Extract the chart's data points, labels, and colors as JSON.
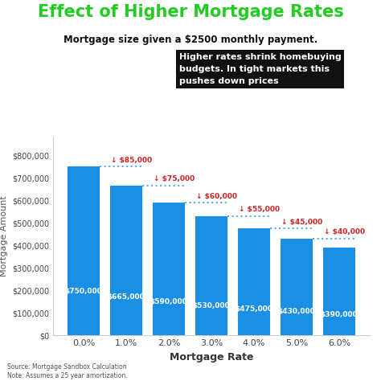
{
  "title": "Effect of Higher Mortgage Rates",
  "subtitle": "Mortgage size given a $2500 monthly payment.",
  "xlabel": "Mortgage Rate",
  "ylabel": "Mortgage Amount",
  "categories": [
    "0.0%",
    "1.0%",
    "2.0%",
    "3.0%",
    "4.0%",
    "5.0%",
    "6.0%"
  ],
  "values": [
    750000,
    665000,
    590000,
    530000,
    475000,
    430000,
    390000
  ],
  "bar_color": "#1a8fe3",
  "bar_labels": [
    "$750,000",
    "$665,000",
    "$590,000",
    "$530,000",
    "$475,000",
    "$430,000",
    "$390,000"
  ],
  "drops": [
    "$85,000",
    "$75,000",
    "$60,000",
    "$55,000",
    "$45,000",
    "$40,000"
  ],
  "drop_color": "#cc2222",
  "dotted_line_color": "#5aaaee",
  "annotation_box_color": "#111111",
  "annotation_text": "Higher rates shrink homebuying\nbudgets. In tight markets this\npushes down prices",
  "annotation_text_color": "#ffffff",
  "background_color": "#ffffff",
  "title_color": "#22cc22",
  "subtitle_color": "#111111",
  "ylabel_color": "#555555",
  "xlabel_color": "#333333",
  "tick_color": "#444444",
  "source_text": "Source: Mortgage Sandbox Calculation\nNote: Assumes a 25 year amortization.",
  "ylim": [
    0,
    880000
  ],
  "yticks": [
    0,
    100000,
    200000,
    300000,
    400000,
    500000,
    600000,
    700000,
    800000
  ]
}
